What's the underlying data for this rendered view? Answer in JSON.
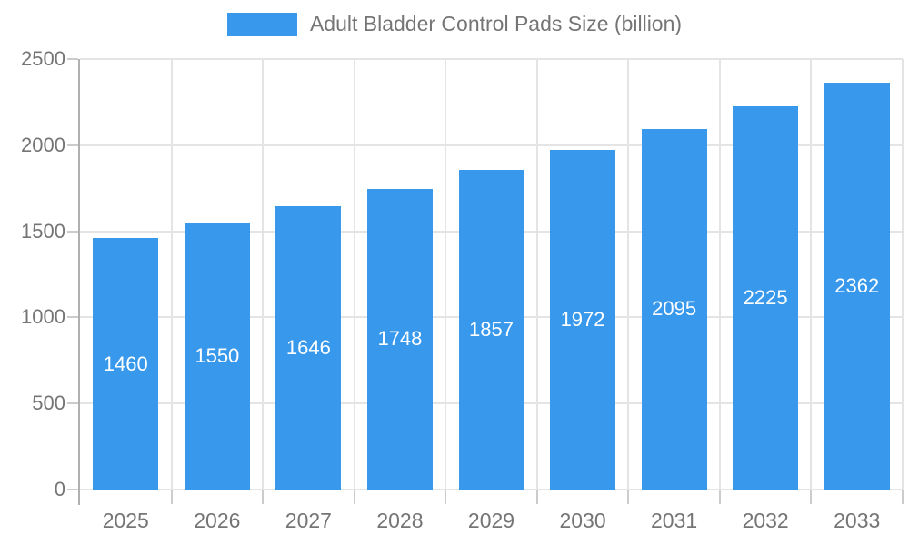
{
  "legend": {
    "label": "Adult Bladder Control Pads Size (billion)"
  },
  "chart_data": {
    "type": "bar",
    "title": "Adult Bladder Control Pads Size (billion)",
    "categories": [
      "2025",
      "2026",
      "2027",
      "2028",
      "2029",
      "2030",
      "2031",
      "2032",
      "2033"
    ],
    "values": [
      1460,
      1550,
      1646,
      1748,
      1857,
      1972,
      2095,
      2225,
      2362
    ],
    "xlabel": "",
    "ylabel": "",
    "ylim": [
      0,
      2500
    ],
    "yticks": [
      0,
      500,
      1000,
      1500,
      2000,
      2500
    ],
    "grid": true,
    "legend_position": "top",
    "value_labels": "inside-middle",
    "colors": {
      "bar": "#3899EC",
      "grid": "#e4e4e4",
      "axis_line": "#b0b0b0",
      "tick": "#cccccc",
      "axis_text": "#757575",
      "value_label_text": "#ffffff",
      "background": "#ffffff"
    }
  }
}
